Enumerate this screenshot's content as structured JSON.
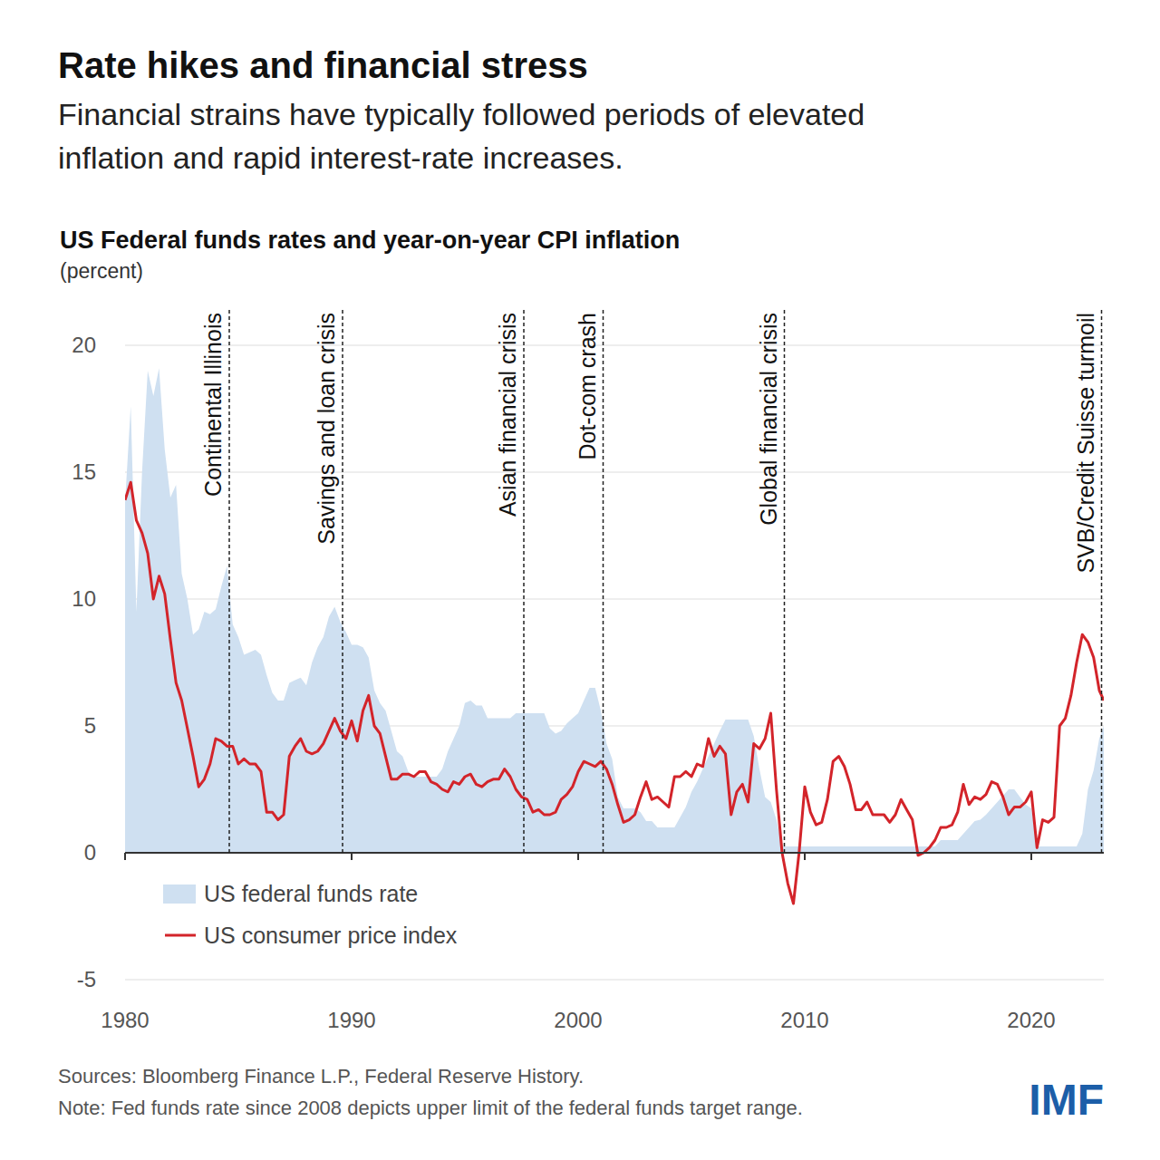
{
  "chart_data": {
    "type": "line",
    "title": "Rate hikes and financial stress",
    "subtitle": [
      "Financial strains have typically followed periods of elevated",
      "inflation and rapid interest-rate increases."
    ],
    "chart_title": "US Federal funds rates and year-on-year CPI inflation",
    "y_label": "(percent)",
    "source": "Sources: Bloomberg Finance L.P., Federal Reserve History.",
    "note": "Note: Fed funds rate since 2008 depicts upper limit of the federal funds target range.",
    "logo": "IMF",
    "xlim": [
      1980,
      2023.2
    ],
    "xticks": [
      1980,
      1990,
      2000,
      2010,
      2020
    ],
    "ylim": [
      -5,
      20
    ],
    "yticks": [
      -5,
      0,
      5,
      10,
      15,
      20
    ],
    "grid": true,
    "legend": "lower left",
    "annotations": [
      {
        "label": "Continental Illinois",
        "x": 1984.6
      },
      {
        "label": "Savings and loan crisis",
        "x": 1989.6
      },
      {
        "label": "Asian financial crisis",
        "x": 1997.6
      },
      {
        "label": "Dot-com crash",
        "x": 2001.1
      },
      {
        "label": "Global financial crisis",
        "x": 2009.1
      },
      {
        "label": "SVB/Credit Suisse turmoil",
        "x": 2023.1
      }
    ],
    "x": [
      1980,
      1980.25,
      1980.5,
      1980.75,
      1981,
      1981.25,
      1981.5,
      1981.75,
      1982,
      1982.25,
      1982.5,
      1982.75,
      1983,
      1983.25,
      1983.5,
      1983.75,
      1984,
      1984.25,
      1984.5,
      1984.75,
      1985,
      1985.25,
      1985.5,
      1985.75,
      1986,
      1986.25,
      1986.5,
      1986.75,
      1987,
      1987.25,
      1987.5,
      1987.75,
      1988,
      1988.25,
      1988.5,
      1988.75,
      1989,
      1989.25,
      1989.5,
      1989.75,
      1990,
      1990.25,
      1990.5,
      1990.75,
      1991,
      1991.25,
      1991.5,
      1991.75,
      1992,
      1992.25,
      1992.5,
      1992.75,
      1993,
      1993.25,
      1993.5,
      1993.75,
      1994,
      1994.25,
      1994.5,
      1994.75,
      1995,
      1995.25,
      1995.5,
      1995.75,
      1996,
      1996.25,
      1996.5,
      1996.75,
      1997,
      1997.25,
      1997.5,
      1997.75,
      1998,
      1998.25,
      1998.5,
      1998.75,
      1999,
      1999.25,
      1999.5,
      1999.75,
      2000,
      2000.25,
      2000.5,
      2000.75,
      2001,
      2001.25,
      2001.5,
      2001.75,
      2002,
      2002.25,
      2002.5,
      2002.75,
      2003,
      2003.25,
      2003.5,
      2003.75,
      2004,
      2004.25,
      2004.5,
      2004.75,
      2005,
      2005.25,
      2005.5,
      2005.75,
      2006,
      2006.25,
      2006.5,
      2006.75,
      2007,
      2007.25,
      2007.5,
      2007.75,
      2008,
      2008.25,
      2008.5,
      2008.75,
      2009,
      2009.25,
      2009.5,
      2009.75,
      2010,
      2010.25,
      2010.5,
      2010.75,
      2011,
      2011.25,
      2011.5,
      2011.75,
      2012,
      2012.25,
      2012.5,
      2012.75,
      2013,
      2013.25,
      2013.5,
      2013.75,
      2014,
      2014.25,
      2014.5,
      2014.75,
      2015,
      2015.25,
      2015.5,
      2015.75,
      2016,
      2016.25,
      2016.5,
      2016.75,
      2017,
      2017.25,
      2017.5,
      2017.75,
      2018,
      2018.25,
      2018.5,
      2018.75,
      2019,
      2019.25,
      2019.5,
      2019.75,
      2020,
      2020.25,
      2020.5,
      2020.75,
      2021,
      2021.25,
      2021.5,
      2021.75,
      2022,
      2022.25,
      2022.5,
      2022.75,
      2023,
      2023.2
    ],
    "series": [
      {
        "name": "US federal funds rate",
        "type": "area",
        "color": "#cfe0f1",
        "values": [
          13.8,
          17.6,
          9.5,
          15.0,
          19.0,
          18.0,
          19.1,
          15.9,
          14.0,
          14.5,
          11.0,
          10.0,
          8.6,
          8.8,
          9.5,
          9.4,
          9.6,
          10.5,
          11.3,
          9.0,
          8.5,
          7.8,
          7.9,
          8.0,
          7.8,
          7.0,
          6.3,
          6.0,
          6.0,
          6.7,
          6.8,
          6.9,
          6.6,
          7.5,
          8.1,
          8.5,
          9.3,
          9.7,
          9.1,
          8.7,
          8.2,
          8.2,
          8.1,
          7.7,
          6.4,
          5.9,
          5.6,
          4.8,
          4.0,
          3.8,
          3.2,
          3.0,
          3.0,
          3.0,
          3.0,
          3.0,
          3.3,
          4.0,
          4.5,
          5.0,
          5.9,
          6.0,
          5.8,
          5.8,
          5.3,
          5.3,
          5.3,
          5.3,
          5.3,
          5.5,
          5.5,
          5.5,
          5.5,
          5.5,
          5.5,
          4.9,
          4.7,
          4.8,
          5.1,
          5.3,
          5.5,
          6.0,
          6.5,
          6.5,
          5.6,
          4.3,
          3.7,
          2.2,
          1.75,
          1.75,
          1.75,
          1.6,
          1.25,
          1.25,
          1.0,
          1.0,
          1.0,
          1.0,
          1.4,
          1.8,
          2.4,
          2.8,
          3.3,
          3.8,
          4.3,
          4.8,
          5.25,
          5.25,
          5.25,
          5.25,
          5.25,
          4.6,
          3.3,
          2.2,
          2.0,
          1.3,
          0.25,
          0.25,
          0.25,
          0.25,
          0.25,
          0.25,
          0.25,
          0.25,
          0.25,
          0.25,
          0.25,
          0.25,
          0.25,
          0.25,
          0.25,
          0.25,
          0.25,
          0.25,
          0.25,
          0.25,
          0.25,
          0.25,
          0.25,
          0.25,
          0.25,
          0.25,
          0.25,
          0.25,
          0.5,
          0.5,
          0.5,
          0.5,
          0.75,
          1.0,
          1.25,
          1.3,
          1.5,
          1.75,
          2.0,
          2.25,
          2.5,
          2.5,
          2.2,
          1.9,
          1.75,
          0.25,
          0.25,
          0.25,
          0.25,
          0.25,
          0.25,
          0.25,
          0.25,
          0.75,
          2.5,
          3.25,
          4.5,
          5.0
        ]
      },
      {
        "name": "US consumer price index",
        "type": "line",
        "color": "#d3242a",
        "values": [
          13.9,
          14.6,
          13.1,
          12.6,
          11.8,
          10.0,
          10.9,
          10.2,
          8.4,
          6.7,
          6.0,
          4.9,
          3.8,
          2.6,
          2.9,
          3.5,
          4.5,
          4.4,
          4.2,
          4.2,
          3.5,
          3.7,
          3.5,
          3.5,
          3.2,
          1.6,
          1.6,
          1.3,
          1.5,
          3.8,
          4.2,
          4.5,
          4.0,
          3.9,
          4.0,
          4.3,
          4.8,
          5.3,
          4.8,
          4.5,
          5.2,
          4.4,
          5.6,
          6.2,
          5.0,
          4.7,
          3.8,
          2.9,
          2.9,
          3.1,
          3.1,
          3.0,
          3.2,
          3.2,
          2.8,
          2.7,
          2.5,
          2.4,
          2.8,
          2.7,
          3.0,
          3.1,
          2.7,
          2.6,
          2.8,
          2.9,
          2.9,
          3.3,
          3.0,
          2.5,
          2.2,
          2.1,
          1.6,
          1.7,
          1.5,
          1.5,
          1.6,
          2.1,
          2.3,
          2.6,
          3.2,
          3.6,
          3.5,
          3.4,
          3.6,
          3.3,
          2.7,
          1.9,
          1.2,
          1.3,
          1.5,
          2.2,
          2.8,
          2.1,
          2.2,
          2.0,
          1.8,
          3.0,
          3.0,
          3.2,
          3.0,
          3.5,
          3.4,
          4.5,
          3.8,
          4.2,
          3.9,
          1.5,
          2.4,
          2.7,
          2.0,
          4.3,
          4.1,
          4.5,
          5.5,
          2.5,
          0.0,
          -1.2,
          -2.0,
          0.0,
          2.6,
          1.6,
          1.1,
          1.2,
          2.1,
          3.6,
          3.8,
          3.4,
          2.7,
          1.7,
          1.7,
          2.0,
          1.5,
          1.5,
          1.5,
          1.2,
          1.5,
          2.1,
          1.7,
          1.3,
          -0.1,
          0.0,
          0.2,
          0.5,
          1.0,
          1.0,
          1.1,
          1.6,
          2.7,
          1.9,
          2.2,
          2.1,
          2.3,
          2.8,
          2.7,
          2.2,
          1.5,
          1.8,
          1.8,
          2.0,
          2.4,
          0.2,
          1.3,
          1.2,
          1.4,
          5.0,
          5.3,
          6.2,
          7.5,
          8.6,
          8.3,
          7.7,
          6.4,
          6.0
        ]
      }
    ]
  }
}
